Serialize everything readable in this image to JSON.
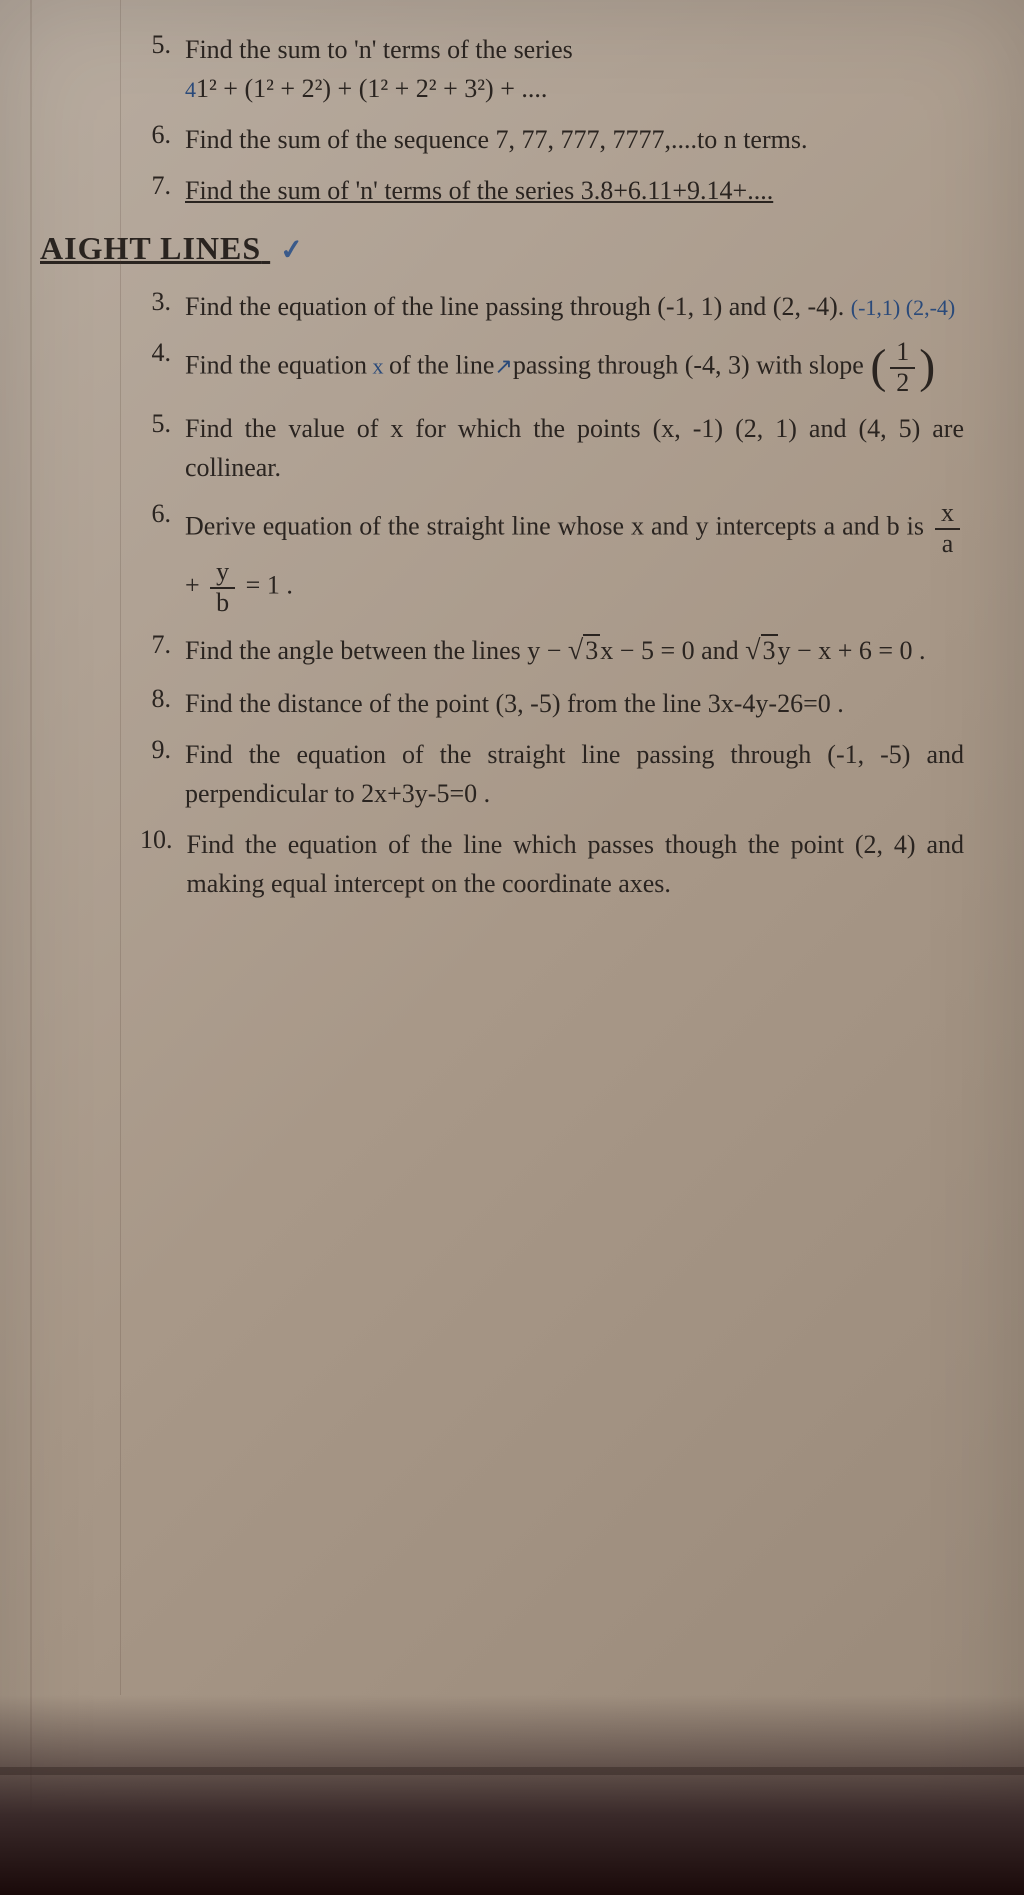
{
  "colors": {
    "page_bg": "#b0a090",
    "text": "#2a2420",
    "handwritten": "#2a4a7a",
    "body_bg": "#2a2626"
  },
  "typography": {
    "body_fontsize": 26,
    "heading_fontsize": 32,
    "font_family": "Georgia, Times New Roman, serif"
  },
  "top_questions": [
    {
      "num": "5.",
      "text": "Find the sum to 'n' terms of the series",
      "formula": "1² + (1² + 2²) + (1² + 2² + 3²) + ....",
      "handwritten_prefix": "4"
    },
    {
      "num": "6.",
      "text": "Find the sum of the sequence 7, 77, 777, 7777,....to n terms."
    },
    {
      "num": "7.",
      "text": "Find the sum of 'n' terms of the series 3.8+6.11+9.14+...."
    }
  ],
  "section_heading": "AIGHT LINES",
  "bottom_questions": [
    {
      "num": "3.",
      "text_a": "Find the equation of the line passing through (-1, 1) and (2, -4).",
      "handwritten": "(-1,1)  (2,-4)"
    },
    {
      "num": "4.",
      "text_a": "Find the equation of the line passing through (-4, 3) with slope",
      "frac_num": "1",
      "frac_den": "2",
      "handwritten_x": "x",
      "handwritten_arrow": "↗"
    },
    {
      "num": "5.",
      "text": "Find the value of x for which the points (x, -1) (2, 1) and (4, 5) are collinear."
    },
    {
      "num": "6.",
      "text_a": "Derive equation of the straight line whose x and y intercepts a and b is",
      "eq_parts": {
        "x": "x",
        "a": "a",
        "y": "y",
        "b": "b",
        "rhs": "= 1 ."
      }
    },
    {
      "num": "7.",
      "text_a": "Find the angle between the lines y −",
      "sqrt1": "3",
      "text_b": "x − 5 = 0 and",
      "sqrt2": "3",
      "text_c": "y − x + 6 = 0 ."
    },
    {
      "num": "8.",
      "text": "Find the distance of the point (3, -5) from the line 3x-4y-26=0 ."
    },
    {
      "num": "9.",
      "text": "Find the equation of the straight line passing through (-1, -5) and perpendicular to 2x+3y-5=0 ."
    },
    {
      "num": "10.",
      "text": "Find the equation of the line which passes though the point (2, 4) and making equal intercept on the coordinate axes."
    }
  ]
}
